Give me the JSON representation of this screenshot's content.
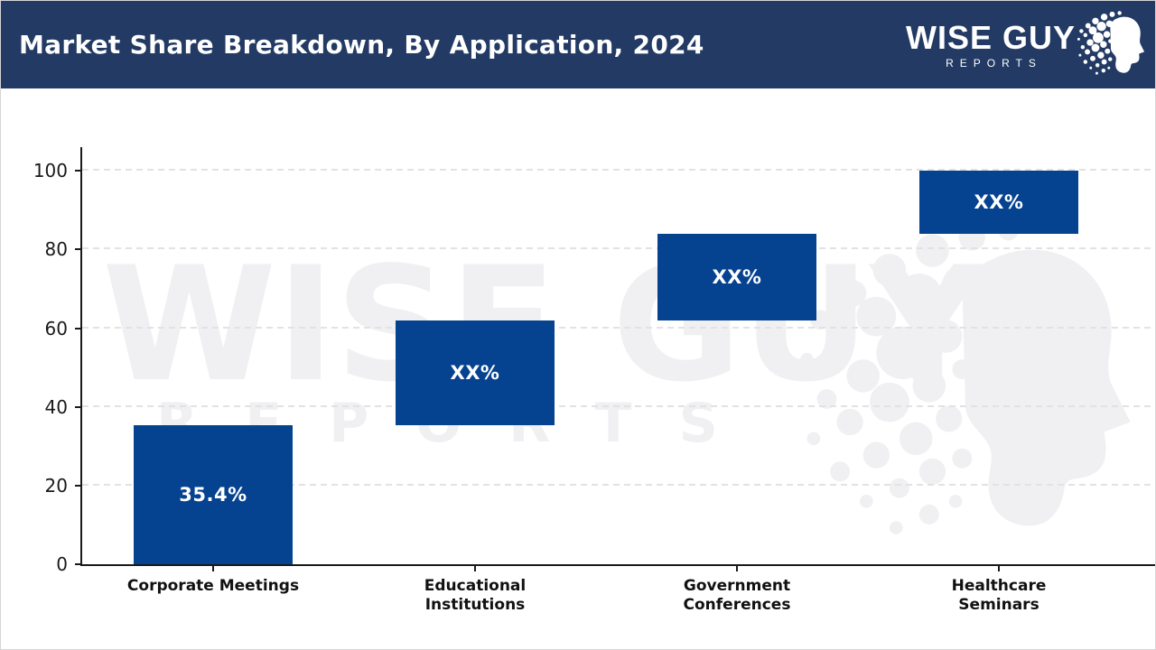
{
  "header": {
    "title": "Market Share Breakdown, By Application, 2024",
    "background_color": "#223a64",
    "logo": {
      "brand_line1": "WISE GUY",
      "brand_line2": "REPORTS"
    }
  },
  "watermark": {
    "line1": "WISE GUY",
    "line2": "REPORTS"
  },
  "chart_data": {
    "type": "bar",
    "subtype": "floating-waterfall",
    "title": "Market Share Breakdown, By Application, 2024",
    "categories": [
      "Corporate Meetings",
      "Educational\nInstitutions",
      "Government\nConferences",
      "Healthcare\nSeminars"
    ],
    "segments": [
      {
        "category": "Corporate Meetings",
        "start": 0,
        "end": 35.4,
        "label": "35.4%"
      },
      {
        "category": "Educational Institutions",
        "start": 35.4,
        "end": 62,
        "label": "XX%"
      },
      {
        "category": "Government Conferences",
        "start": 62,
        "end": 84,
        "label": "XX%"
      },
      {
        "category": "Healthcare Seminars",
        "start": 84,
        "end": 100,
        "label": "XX%"
      }
    ],
    "yticks": [
      0,
      20,
      40,
      60,
      80,
      100
    ],
    "ylim": [
      0,
      106
    ],
    "xlabel": "",
    "ylabel": "",
    "legend": "none",
    "grid": "horizontal-dashed",
    "gridline_color": "#e2e2e4",
    "axis_color": "#1a1a1a",
    "bar_color": "#05428f",
    "bar_label_color": "#ffffff"
  }
}
